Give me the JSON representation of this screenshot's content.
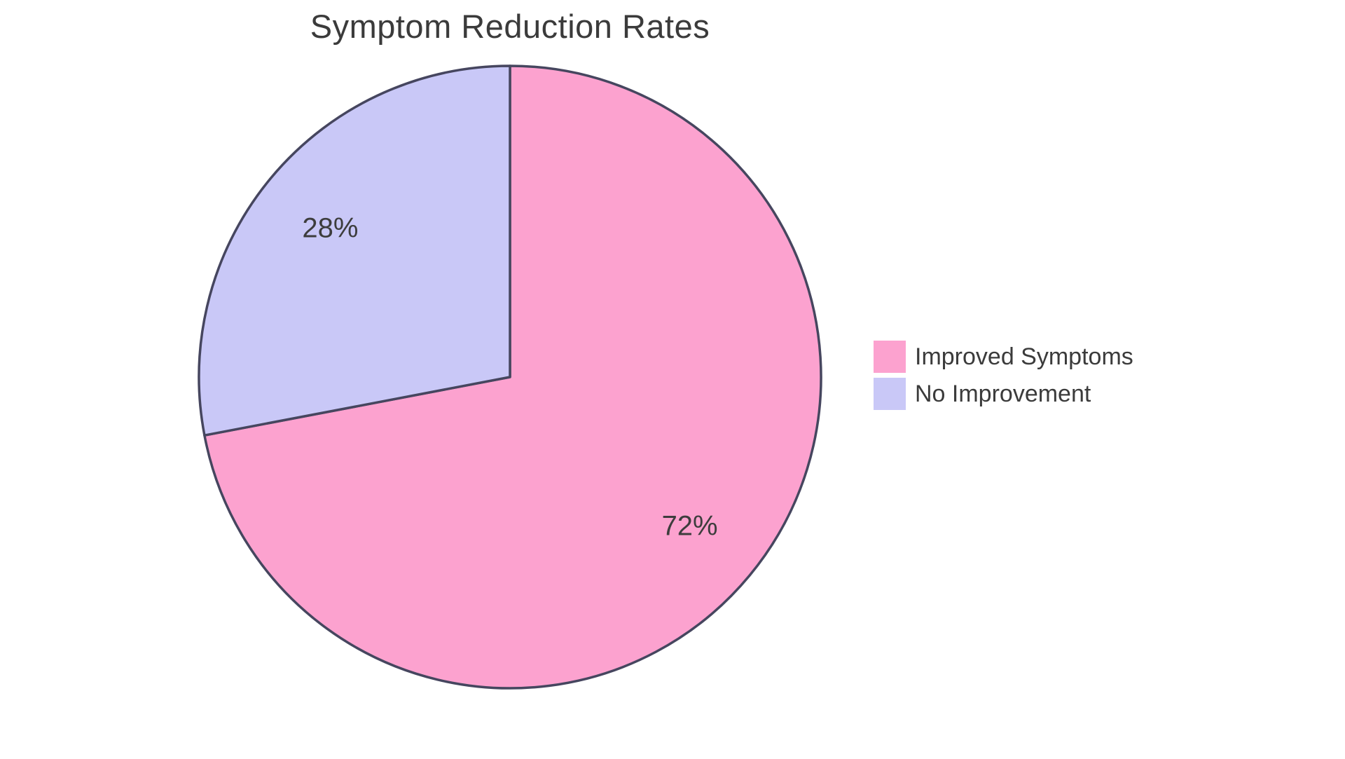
{
  "title": "Symptom Reduction Rates",
  "colors": {
    "background": "#ffffff",
    "title_text": "#3b3b3b",
    "label_text": "#3d3d3d",
    "slice_stroke": "#46465f"
  },
  "chart_data": {
    "type": "pie",
    "title": "Symptom Reduction Rates",
    "slices": [
      {
        "label": "Improved Symptoms",
        "value": 72,
        "pct_label": "72%",
        "color": "#fca2cf"
      },
      {
        "label": "No Improvement",
        "value": 28,
        "pct_label": "28%",
        "color": "#c9c8f7"
      }
    ],
    "start_angle_deg": -90,
    "direction": "clockwise",
    "labels_inside": true,
    "label_radius_fraction": 0.75,
    "legend_position": "right",
    "grid": false
  }
}
